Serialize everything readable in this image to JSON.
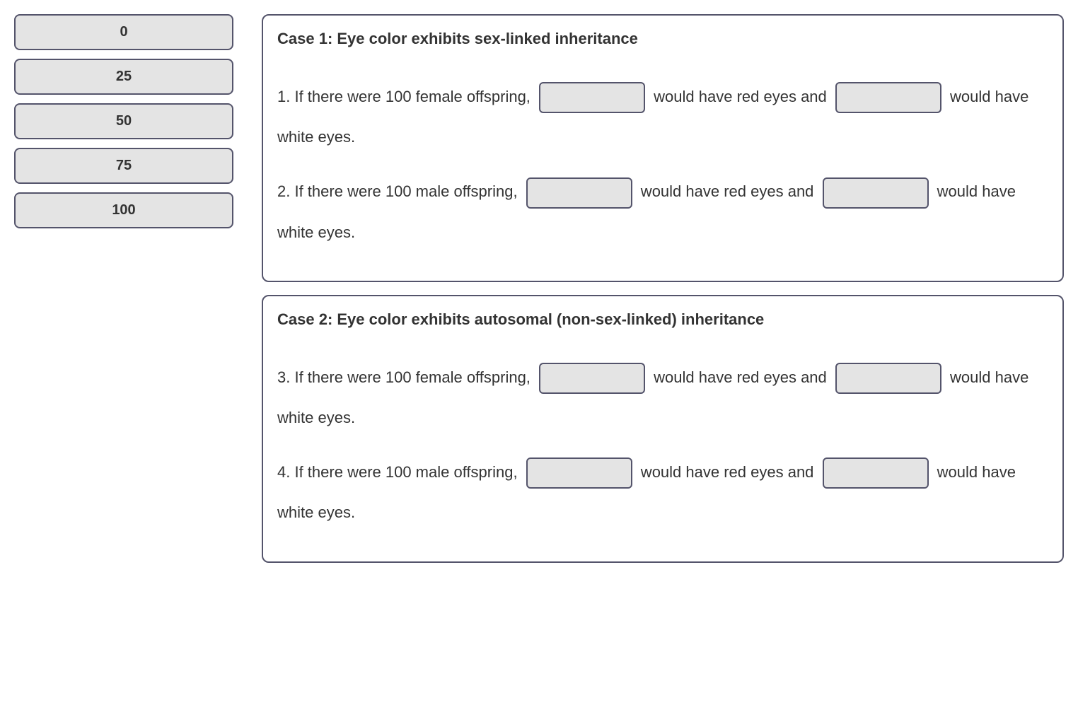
{
  "choices": [
    "0",
    "25",
    "50",
    "75",
    "100"
  ],
  "cases": [
    {
      "title": "Case 1: Eye color exhibits sex-linked inheritance",
      "questions": [
        {
          "num": "1.",
          "lead": " If there were 100 female offspring, ",
          "mid": " would have red eyes and ",
          "tail": " would have white eyes."
        },
        {
          "num": "2.",
          "lead": " If there were 100 male offspring, ",
          "mid": " would have red eyes and ",
          "tail": " would have white eyes."
        }
      ]
    },
    {
      "title": "Case 2: Eye color exhibits autosomal (non-sex-linked) inheritance",
      "questions": [
        {
          "num": "3.",
          "lead": " If there were 100 female offspring, ",
          "mid": " would have red eyes and ",
          "tail": " would have white eyes."
        },
        {
          "num": "4.",
          "lead": " If there were 100 male offspring, ",
          "mid": " would have red eyes and ",
          "tail": " would have white eyes."
        }
      ]
    }
  ],
  "colors": {
    "border": "#54546b",
    "fill": "#e4e4e4",
    "text": "#333333",
    "bg": "#ffffff"
  }
}
